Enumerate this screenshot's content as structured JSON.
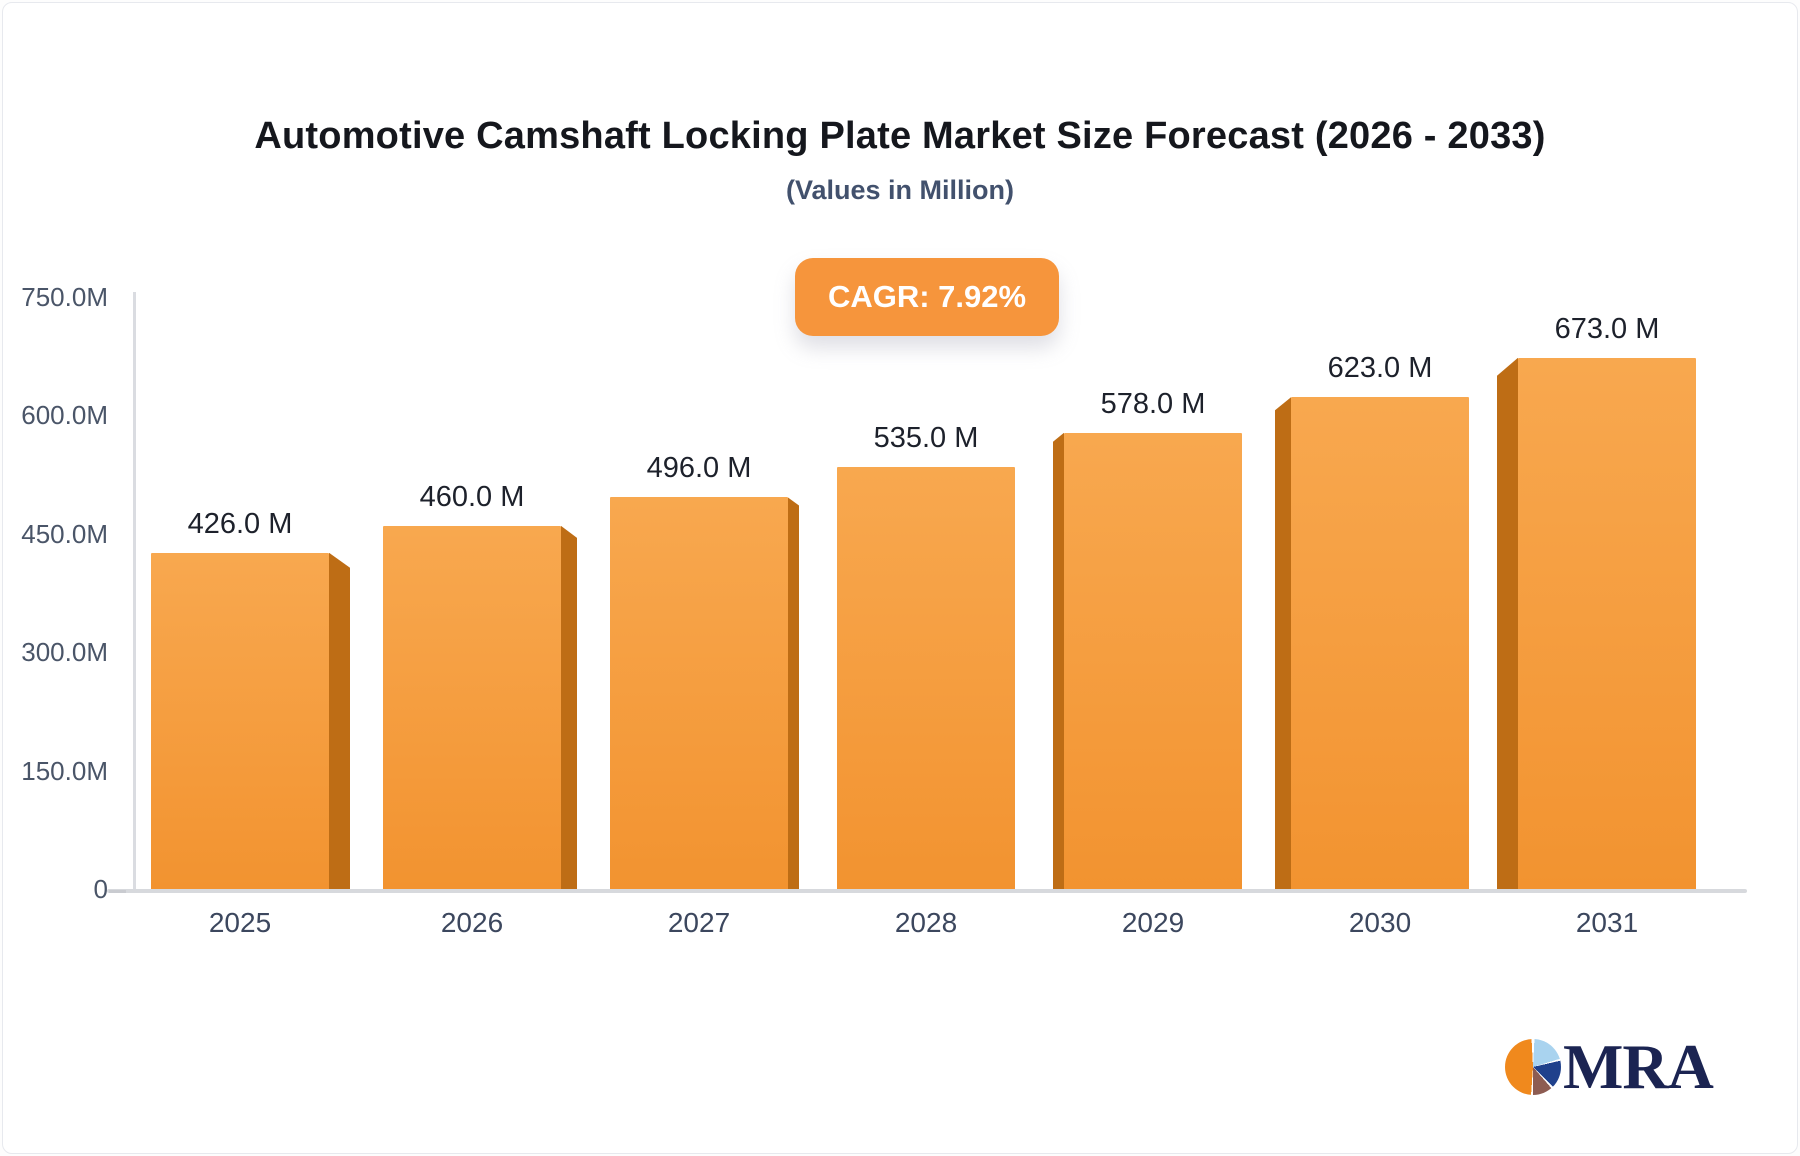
{
  "header": {
    "title": "Automotive Camshaft Locking Plate Market Size Forecast (2026 - 2033)",
    "subtitle": "(Values in Million)"
  },
  "badge": {
    "label": "CAGR: 7.92%"
  },
  "chart_data": {
    "type": "bar",
    "title": "Automotive Camshaft Locking Plate Market Size Forecast (2026 - 2033)",
    "subtitle": "(Values in Million)",
    "cagr_label": "CAGR: 7.92%",
    "categories": [
      "2025",
      "2026",
      "2027",
      "2028",
      "2029",
      "2030",
      "2031"
    ],
    "values": [
      426.0,
      460.0,
      496.0,
      535.0,
      578.0,
      623.0,
      673.0
    ],
    "value_labels": [
      "426.0 M",
      "460.0 M",
      "496.0 M",
      "535.0 M",
      "578.0 M",
      "623.0 M",
      "673.0 M"
    ],
    "y_ticks": [
      {
        "value": 750,
        "label": "750.0M"
      },
      {
        "value": 600,
        "label": "600.0M"
      },
      {
        "value": 450,
        "label": "450.0M"
      },
      {
        "value": 300,
        "label": "300.0M"
      },
      {
        "value": 150,
        "label": "150.0M"
      },
      {
        "value": 0,
        "label": "0"
      }
    ],
    "ylim": [
      0,
      750
    ],
    "xlabel": "",
    "ylabel": "",
    "grid": false,
    "legend": "none",
    "style": "3d-extruded-bars-center-perspective"
  },
  "colors": {
    "bar_front_top": "#F8A84F",
    "bar_front_bottom": "#F29330",
    "bar_side": "#BE6D15",
    "badge_bg": "#F6953C",
    "axis_line": "#DADCE1",
    "baseline": "#D7D9DD"
  },
  "logo": {
    "text": "MRA",
    "icon": "pie-chart-icon"
  }
}
